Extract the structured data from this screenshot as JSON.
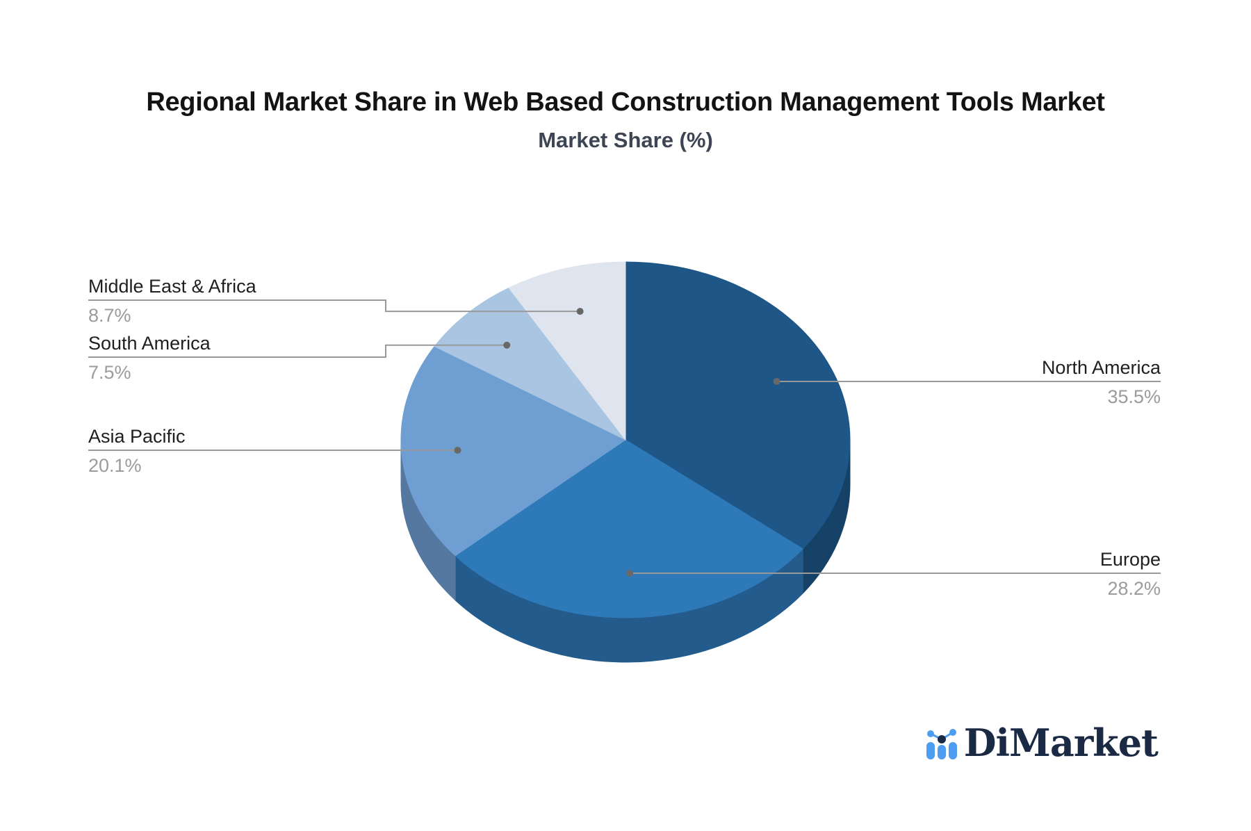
{
  "page": {
    "background": "#ffffff",
    "title_color": "#131313",
    "subtitle_color": "#3d4454"
  },
  "chart_data": {
    "type": "pie",
    "style": "3d",
    "title": "Regional Market Share in Web Based Construction Management Tools Market",
    "subtitle": "Market Share (%)",
    "unit": "%",
    "categories": [
      "North America",
      "Europe",
      "Asia Pacific",
      "South America",
      "Middle East & Africa"
    ],
    "values": [
      35.5,
      28.2,
      20.1,
      7.5,
      8.7
    ],
    "display_values": [
      "35.5%",
      "28.2%",
      "20.1%",
      "7.5%",
      "8.7%"
    ],
    "colors": [
      "#1d5687",
      "#2e79b8",
      "#6f9ed2",
      "#a9c5e1",
      "#dfe5ef"
    ],
    "start_angle": "12 o'clock",
    "direction": "clockwise",
    "legend_position": "callout-labels",
    "grid": false
  },
  "callout_style": {
    "line_color": "#999999",
    "dot_color": "#686868",
    "label_color": "#1f1f1f",
    "value_color": "#9b9b9b"
  },
  "branding": {
    "logo_text": "DiMarket",
    "logo_text_color": "#1b2a44",
    "icon_name": "bar-line-chart-icon",
    "icon_color": "#4d9df1",
    "icon_accent_color": "#1b2a44"
  }
}
